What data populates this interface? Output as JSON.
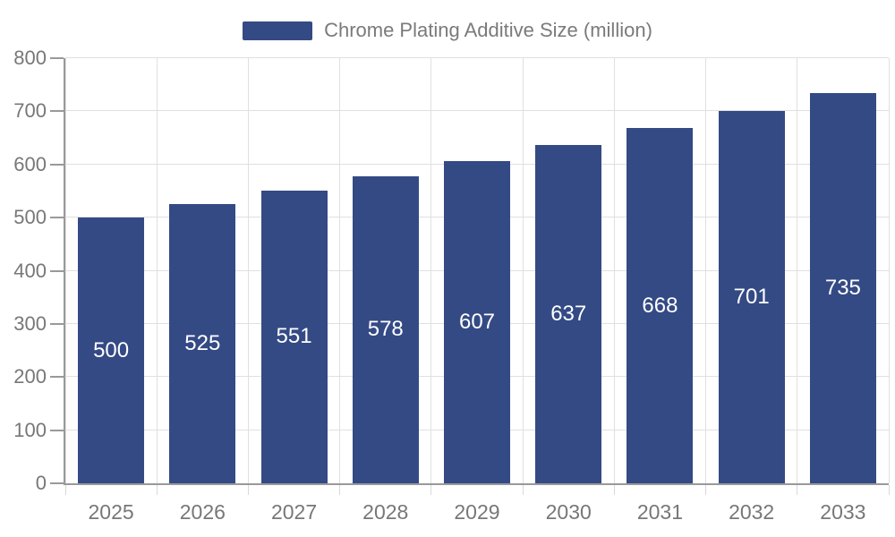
{
  "chart_data": {
    "type": "bar",
    "title": "Chrome Plating Additive Size (million)",
    "legend_label": "Chrome Plating Additive Size (million)",
    "legend_position": "top-center",
    "categories": [
      "2025",
      "2026",
      "2027",
      "2028",
      "2029",
      "2030",
      "2031",
      "2032",
      "2033"
    ],
    "values": [
      500,
      525,
      551,
      578,
      607,
      637,
      668,
      701,
      735
    ],
    "series": [
      {
        "name": "Chrome Plating Additive Size (million)",
        "values": [
          500,
          525,
          551,
          578,
          607,
          637,
          668,
          701,
          735
        ]
      }
    ],
    "xlabel": "",
    "ylabel": "",
    "ylim": [
      0,
      800
    ],
    "yticks": [
      0,
      100,
      200,
      300,
      400,
      500,
      600,
      700,
      800
    ],
    "grid": true,
    "bar_label_position": "inside-center",
    "colors": {
      "bar": "#344a85",
      "grid": "#e0e0e0",
      "axis": "#999999",
      "axis_text": "#777777",
      "legend_text": "#7a7a7a",
      "bar_label": "#ffffff",
      "background": "#ffffff"
    }
  }
}
